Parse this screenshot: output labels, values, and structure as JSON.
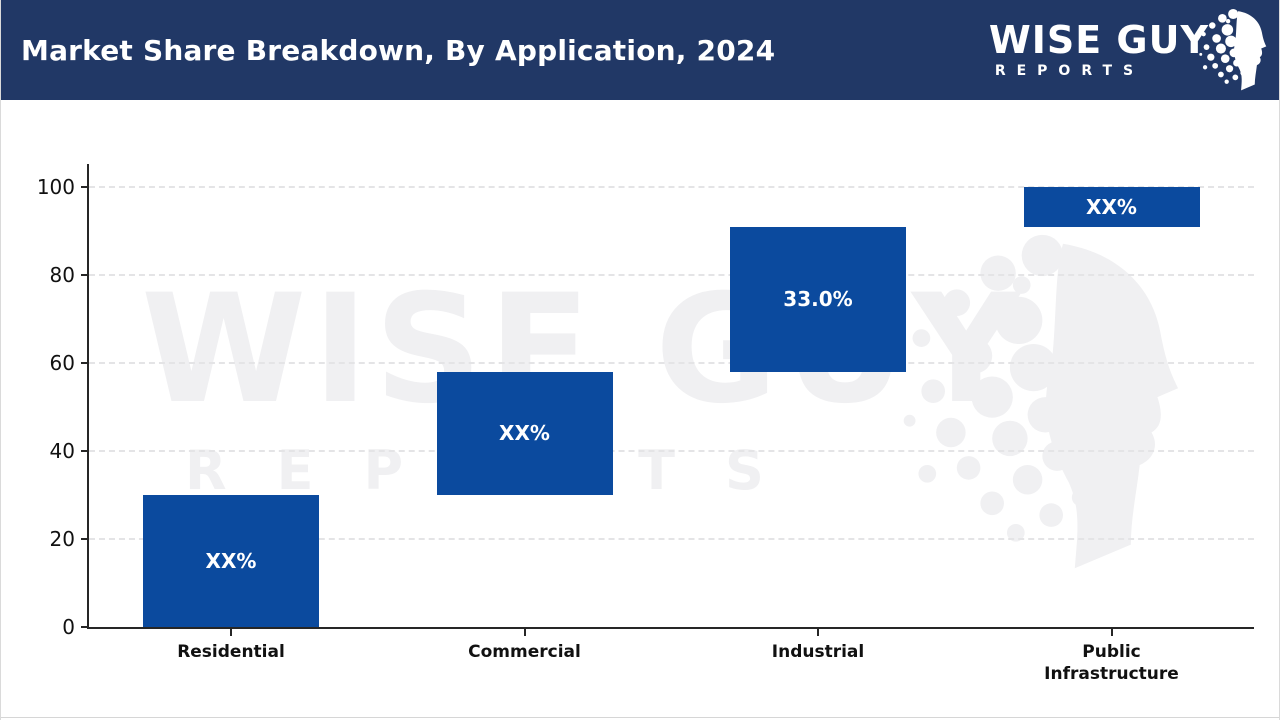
{
  "header": {
    "title": "Market Share Breakdown, By Application, 2024",
    "logo": {
      "line1": "WISE GUY",
      "line2": "REPORTS"
    }
  },
  "watermark": {
    "line1": "WISE GUY",
    "line2": "REPORTS"
  },
  "colors": {
    "header_bg": "#213866",
    "bar": "#0b4a9e",
    "bar_label": "#ffffff",
    "grid": "#e4e4e6",
    "axis": "#262626",
    "watermark": "#f0f0f2"
  },
  "chart_data": {
    "type": "bar",
    "subtype": "waterfall",
    "title": "Market Share Breakdown, By Application, 2024",
    "categories": [
      "Residential",
      "Commercial",
      "Industrial",
      "Public Infrastructure"
    ],
    "segments": [
      {
        "category": "Residential",
        "start": 0,
        "end": 30,
        "value": 30,
        "label": "XX%"
      },
      {
        "category": "Commercial",
        "start": 30,
        "end": 58,
        "value": 28,
        "label": "XX%"
      },
      {
        "category": "Industrial",
        "start": 58,
        "end": 91,
        "value": 33,
        "label": "33.0%"
      },
      {
        "category": "Public Infrastructure",
        "start": 91,
        "end": 100,
        "value": 9,
        "label": "XX%"
      }
    ],
    "xlabel": "",
    "ylabel": "",
    "ylim": [
      0,
      100
    ],
    "yticks": [
      0,
      20,
      40,
      60,
      80,
      100
    ],
    "grid": "horizontal-dashed",
    "legend": "none"
  }
}
